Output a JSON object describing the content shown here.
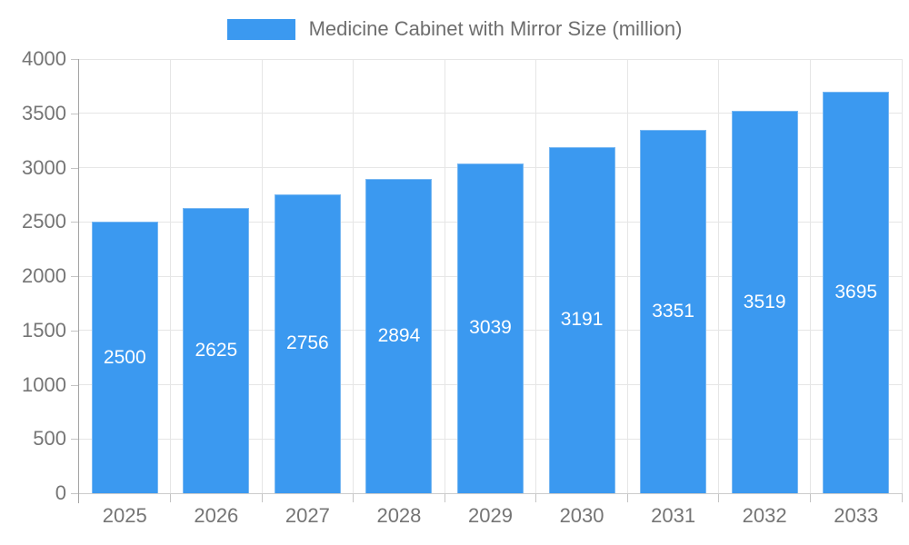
{
  "legend": {
    "label": "Medicine Cabinet with Mirror Size (million)"
  },
  "chart_data": {
    "type": "bar",
    "title": "Medicine Cabinet with Mirror Size (million)",
    "categories": [
      "2025",
      "2026",
      "2027",
      "2028",
      "2029",
      "2030",
      "2031",
      "2032",
      "2033"
    ],
    "values": [
      2500,
      2625,
      2756,
      2894,
      3039,
      3191,
      3351,
      3519,
      3695
    ],
    "xlabel": "",
    "ylabel": "",
    "ylim": [
      0,
      4000
    ],
    "yticks": [
      0,
      500,
      1000,
      1500,
      2000,
      2500,
      3000,
      3500,
      4000
    ],
    "grid": true,
    "legend_position": "top-center",
    "colors": {
      "bar": "#3B99F0",
      "bar_border": "#79b8f2",
      "value_label": "#ffffff",
      "grid": "#e6e6e6",
      "tick": "#c4c4c4",
      "baseline": "#cccccc",
      "axis_line": "#a3a3a3",
      "axis_text": "#757575",
      "legend_text": "#6e6e6e",
      "background": "#ffffff"
    }
  }
}
